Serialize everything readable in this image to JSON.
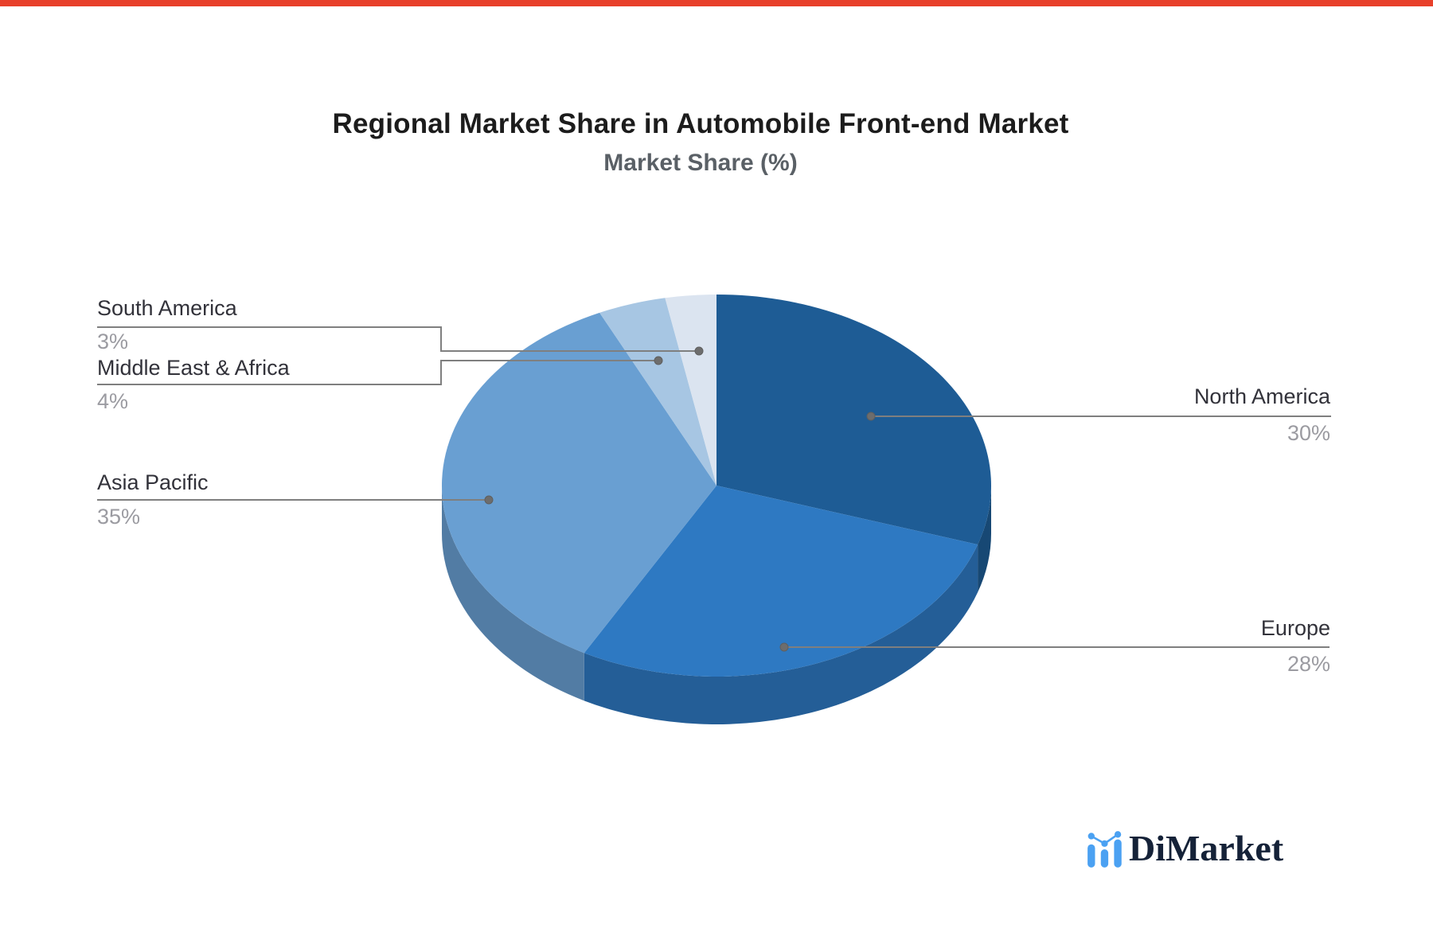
{
  "page": {
    "top_bar_color": "#e8402a",
    "background": "#ffffff"
  },
  "chart": {
    "title": "Regional Market Share in Automobile Front-end Market",
    "subtitle": "Market Share (%)"
  },
  "chart_data": {
    "type": "pie",
    "title": "Regional Market Share in Automobile Front-end Market",
    "subtitle": "Market Share (%)",
    "unit": "%",
    "labels": [
      "North America",
      "Europe",
      "Asia Pacific",
      "Middle East & Africa",
      "South America"
    ],
    "values": [
      30,
      28,
      35,
      4,
      3
    ],
    "display_percents": [
      "30%",
      "28%",
      "35%",
      "4%",
      "3%"
    ],
    "colors": [
      "#1e5c95",
      "#2e79c2",
      "#699fd2",
      "#a7c6e3",
      "#dbe4f0"
    ],
    "style": "3d",
    "start_angle_deg": 0,
    "direction": "clockwise",
    "legend_position": "none (callout labels)",
    "connector_color": "#7f7f7f"
  },
  "branding": {
    "name": "DiMarket"
  }
}
